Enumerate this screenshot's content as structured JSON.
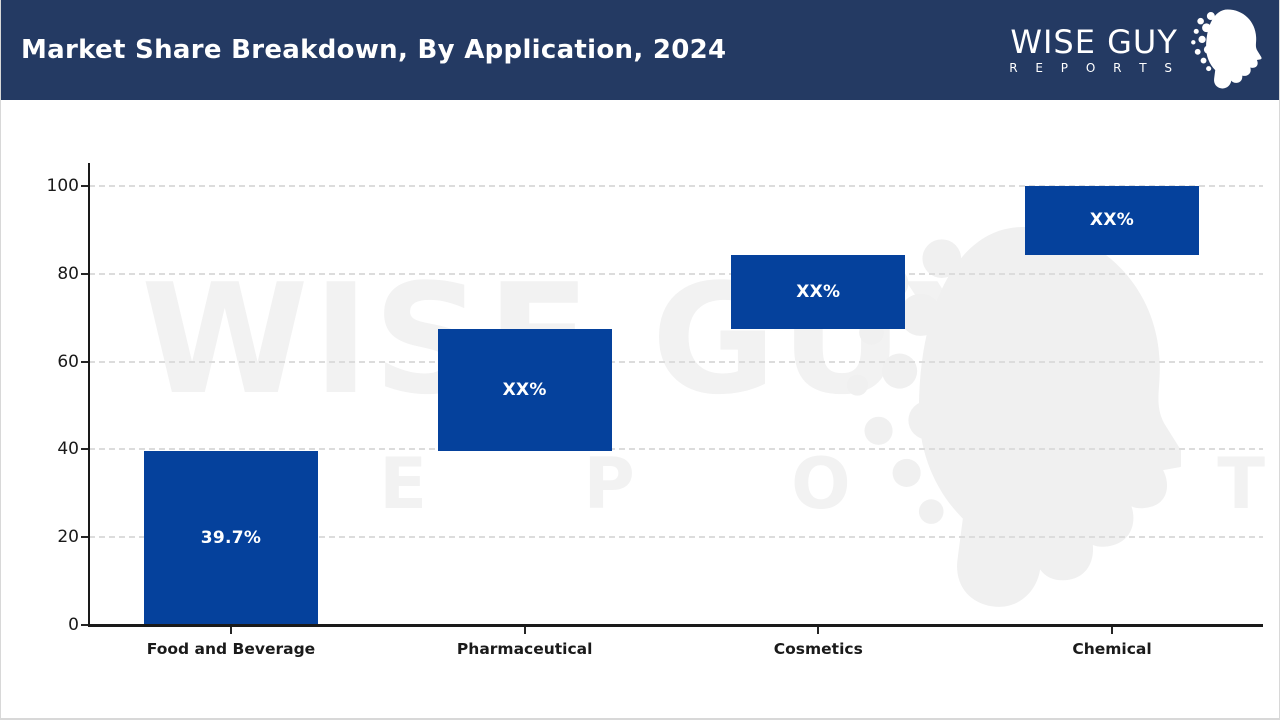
{
  "header": {
    "title": "Market Share Breakdown, By Application, 2024",
    "logo": {
      "line1": "WISE GUY",
      "line2": "R E P O R T S"
    }
  },
  "watermark": {
    "line1": "WISE GUY",
    "line2": "R E P O R T S"
  },
  "colors": {
    "header_bg": "#243A63",
    "bar": "#05419C",
    "bar_label": "#FFFFFF",
    "gridline": "#DCDCDC",
    "axis": "#1A1A1A",
    "watermark": "#F2F2F2"
  },
  "chart_data": {
    "type": "bar",
    "subtype": "floating-waterfall-segments",
    "title": "Market Share Breakdown, By Application, 2024",
    "categories": [
      "Food and Beverage",
      "Pharmaceutical",
      "Cosmetics",
      "Chemical"
    ],
    "segments": [
      {
        "category": "Food and Beverage",
        "start": 0,
        "end": 39.7,
        "label": "39.7%"
      },
      {
        "category": "Pharmaceutical",
        "start": 39.7,
        "end": 67.5,
        "label": "XX%"
      },
      {
        "category": "Cosmetics",
        "start": 67.5,
        "end": 84.3,
        "label": "XX%"
      },
      {
        "category": "Chemical",
        "start": 84.3,
        "end": 100,
        "label": "XX%"
      }
    ],
    "xlabel": "",
    "ylabel": "",
    "ylim": [
      0,
      100
    ],
    "yticks": [
      0,
      20,
      40,
      60,
      80,
      100
    ],
    "grid": "horizontal-dashed",
    "legend": "none"
  }
}
